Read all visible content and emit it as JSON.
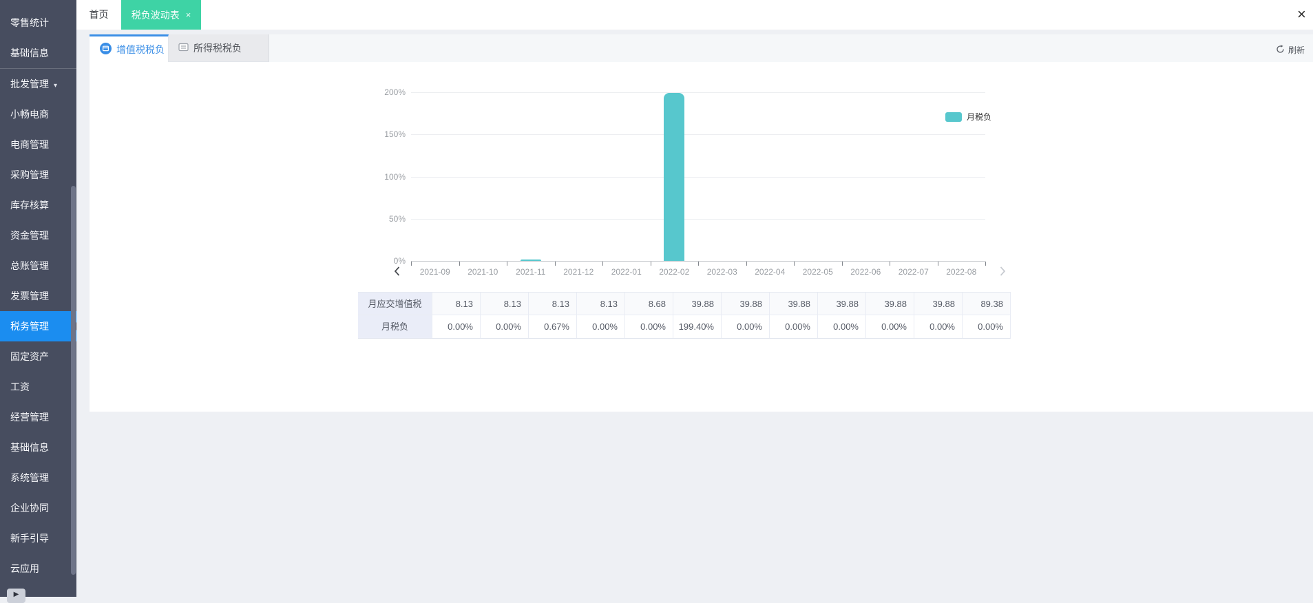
{
  "sidebar": {
    "caret_icon": "▾",
    "items": [
      {
        "label": "零售统计"
      },
      {
        "label": "基础信息",
        "divider_after": true
      },
      {
        "label": "批发管理",
        "caret": true
      },
      {
        "label": "小畅电商"
      },
      {
        "label": "电商管理"
      },
      {
        "label": "采购管理"
      },
      {
        "label": "库存核算"
      },
      {
        "label": "资金管理"
      },
      {
        "label": "总账管理"
      },
      {
        "label": "发票管理"
      },
      {
        "label": "税务管理",
        "active": true
      },
      {
        "label": "固定资产"
      },
      {
        "label": "工资"
      },
      {
        "label": "经营管理"
      },
      {
        "label": "基础信息"
      },
      {
        "label": "系统管理"
      },
      {
        "label": "企业协同"
      },
      {
        "label": "新手引导"
      },
      {
        "label": "云应用"
      }
    ],
    "collapse_icon": "▶"
  },
  "topbar": {
    "home_tab": "首页",
    "active_tab": "税负波动表",
    "tab_close_icon": "×",
    "window_close_icon": "×",
    "active_tab_color": "#3ed3a5"
  },
  "panel": {
    "tabs": [
      {
        "label": "增值税税负",
        "active": true
      },
      {
        "label": "所得税税负",
        "active": false
      }
    ],
    "refresh_label": "刷新"
  },
  "chart_data": {
    "type": "bar",
    "title": "",
    "xlabel": "",
    "ylabel": "",
    "categories": [
      "2021-09",
      "2021-10",
      "2021-11",
      "2021-12",
      "2022-01",
      "2022-02",
      "2022-03",
      "2022-04",
      "2022-05",
      "2022-06",
      "2022-07",
      "2022-08"
    ],
    "series": [
      {
        "name": "月税负",
        "values": [
          0,
          0,
          0.67,
          0,
          0,
          199.4,
          0,
          0,
          0,
          0,
          0,
          0
        ]
      }
    ],
    "ylim": [
      0,
      200
    ],
    "yticks": [
      "0%",
      "50%",
      "100%",
      "150%",
      "200%"
    ],
    "grid": true,
    "legend_position": "top-right",
    "bar_color": "#57c7cd",
    "has_prev_page": true,
    "has_next_page": true
  },
  "table": {
    "rows": [
      {
        "label": "月应交增值税",
        "values": [
          "8.13",
          "8.13",
          "8.13",
          "8.13",
          "8.68",
          "39.88",
          "39.88",
          "39.88",
          "39.88",
          "39.88",
          "39.88",
          "89.38"
        ]
      },
      {
        "label": "月税负",
        "values": [
          "0.00%",
          "0.00%",
          "0.67%",
          "0.00%",
          "0.00%",
          "199.40%",
          "0.00%",
          "0.00%",
          "0.00%",
          "0.00%",
          "0.00%",
          "0.00%"
        ]
      }
    ]
  },
  "colors": {
    "sidebar_bg": "#474d5f",
    "sidebar_active": "#1b8df0",
    "page_bg": "#eef0f4",
    "subtab_accent": "#3a8ee6",
    "bar_teal": "#57c7cd",
    "tab_green": "#3ed3a5"
  }
}
